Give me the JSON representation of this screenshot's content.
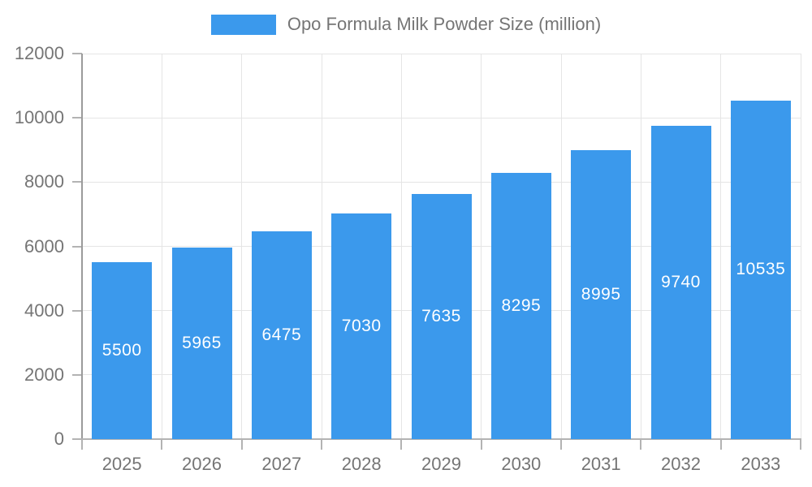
{
  "legend": {
    "label": "Opo Formula Milk Powder Size (million)"
  },
  "chart_data": {
    "type": "bar",
    "title": "Opo Formula Milk Powder Size (million)",
    "series_name": "Opo Formula Milk Powder Size (million)",
    "categories": [
      "2025",
      "2026",
      "2027",
      "2028",
      "2029",
      "2030",
      "2031",
      "2032",
      "2033"
    ],
    "values": [
      5500,
      5965,
      6475,
      7030,
      7635,
      8295,
      8995,
      9740,
      10535
    ],
    "xlabel": "",
    "ylabel": "",
    "ylim": [
      0,
      12000
    ],
    "y_ticks": [
      0,
      2000,
      4000,
      6000,
      8000,
      10000,
      12000
    ],
    "grid": true,
    "legend_position": "top",
    "bar_labels_visible": true,
    "colors": {
      "bar": "#3B99EC",
      "axis_text": "#757575",
      "grid_line": "#E5E5E5",
      "axis_line": "#B3B3B3",
      "bar_label": "#FFFFFF"
    }
  }
}
